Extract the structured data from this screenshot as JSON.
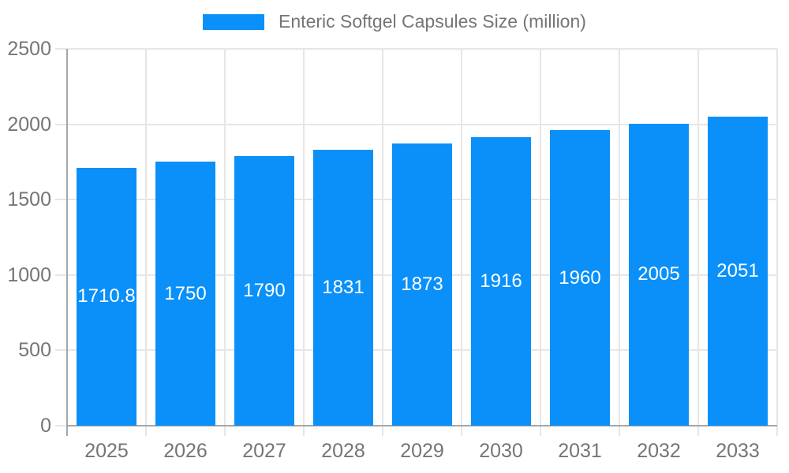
{
  "legend": {
    "label": "Enteric Softgel Capsules Size (million)"
  },
  "chart_data": {
    "type": "bar",
    "title": "Enteric Softgel Capsules Size (million)",
    "xlabel": "",
    "ylabel": "",
    "categories": [
      "2025",
      "2026",
      "2027",
      "2028",
      "2029",
      "2030",
      "2031",
      "2032",
      "2033"
    ],
    "series": [
      {
        "name": "Enteric Softgel Capsules Size (million)",
        "values": [
          1710.8,
          1750,
          1790,
          1831,
          1873,
          1916,
          1960,
          2005,
          2051
        ]
      }
    ],
    "value_labels": [
      "1710.8",
      "1750",
      "1790",
      "1831",
      "1873",
      "1916",
      "1960",
      "2005",
      "2051"
    ],
    "ylim": [
      0,
      2500
    ],
    "y_ticks": [
      0,
      500,
      1000,
      1500,
      2000,
      2500
    ],
    "grid": true,
    "legend_position": "top"
  },
  "colors": {
    "bar": "#0a90f8",
    "grid": "#e6e6e6",
    "axis": "#a6a6a6",
    "tick_text": "#757575",
    "value_label_text": "#ffffff"
  }
}
